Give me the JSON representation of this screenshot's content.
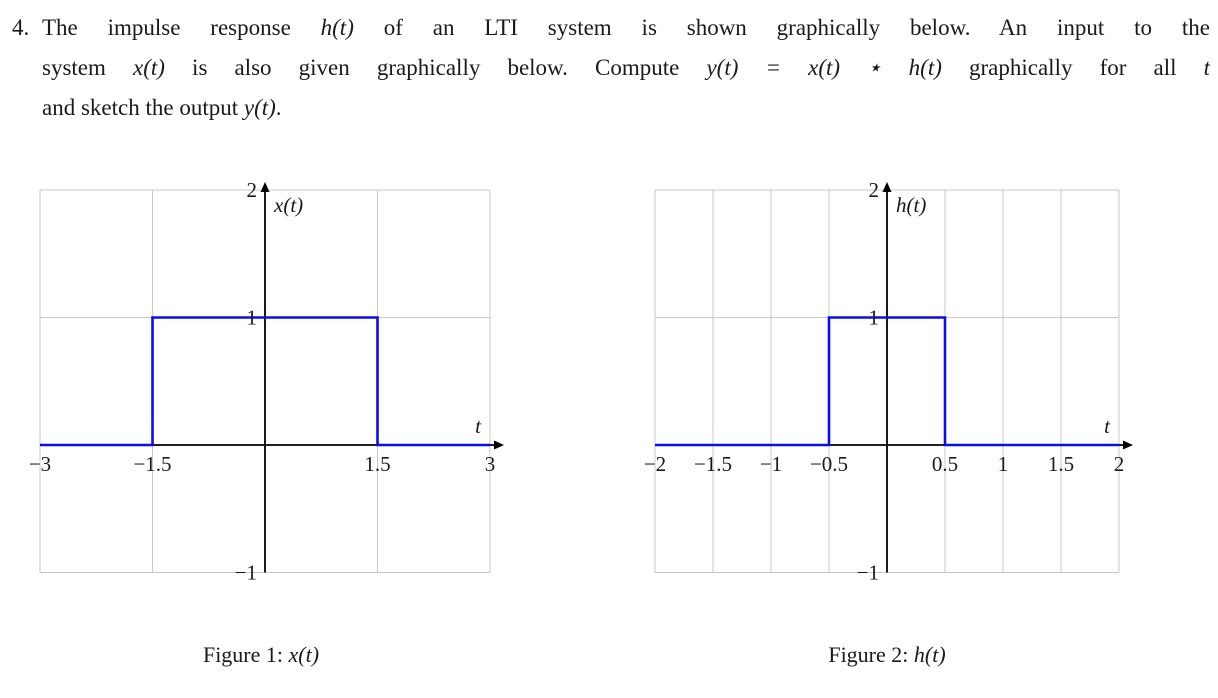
{
  "colors": {
    "signal": "#0b0bf0",
    "grid": "#c9c9c9",
    "axis": "#000000",
    "text": "#1a1a1a",
    "background": "#ffffff"
  },
  "problem": {
    "number": "4.",
    "lines": [
      {
        "justify": true,
        "segments": [
          {
            "text": "The impulse response ",
            "math": false
          },
          {
            "text": "h(t)",
            "math": true
          },
          {
            "text": " of an LTI system is shown graphically below.  An input to the",
            "math": false
          }
        ]
      },
      {
        "justify": true,
        "segments": [
          {
            "text": "system ",
            "math": false
          },
          {
            "text": "x(t)",
            "math": true
          },
          {
            "text": " is also given graphically below.  Compute ",
            "math": false
          },
          {
            "text": "y(t) = x(t) ⋆ h(t)",
            "math": true
          },
          {
            "text": " graphically for all ",
            "math": false
          },
          {
            "text": "t",
            "math": true
          }
        ]
      },
      {
        "justify": false,
        "segments": [
          {
            "text": "and sketch the output ",
            "math": false
          },
          {
            "text": "y(t)",
            "math": true
          },
          {
            "text": ".",
            "math": false
          }
        ]
      }
    ]
  },
  "chart_data": [
    {
      "type": "line",
      "title": "Figure 1: x(t)",
      "caption_prefix": "Figure 1: ",
      "caption_math": "x(t)",
      "xlabel": "t",
      "ylabel": "x(t)",
      "xlim": [
        -3,
        3
      ],
      "ylim": [
        -1,
        2
      ],
      "grid": true,
      "x_grid": [
        -3,
        -1.5,
        0,
        1.5,
        3
      ],
      "y_grid": [
        -1,
        0,
        1,
        2
      ],
      "x_ticks": [
        {
          "v": -3,
          "label": "−3"
        },
        {
          "v": -1.5,
          "label": "−1.5"
        },
        {
          "v": 1.5,
          "label": "1.5"
        },
        {
          "v": 3,
          "label": "3"
        }
      ],
      "y_ticks": [
        {
          "v": 2,
          "label": "2"
        },
        {
          "v": 1,
          "label": "1"
        },
        {
          "v": -1,
          "label": "−1"
        }
      ],
      "points": [
        [
          -3,
          0
        ],
        [
          -1.5,
          0
        ],
        [
          -1.5,
          1
        ],
        [
          1.5,
          1
        ],
        [
          1.5,
          0
        ],
        [
          3,
          0
        ]
      ],
      "description": "Rectangular pulse: x(t) = 1 for −1.5 < t < 1.5, else 0"
    },
    {
      "type": "line",
      "title": "Figure 2: h(t)",
      "caption_prefix": "Figure 2: ",
      "caption_math": "h(t)",
      "xlabel": "t",
      "ylabel": "h(t)",
      "xlim": [
        -2,
        2
      ],
      "ylim": [
        -1,
        2
      ],
      "grid": true,
      "x_grid": [
        -2,
        -1.5,
        -1,
        -0.5,
        0,
        0.5,
        1,
        1.5,
        2
      ],
      "y_grid": [
        -1,
        0,
        1,
        2
      ],
      "x_ticks": [
        {
          "v": -2,
          "label": "−2"
        },
        {
          "v": -1.5,
          "label": "−1.5"
        },
        {
          "v": -1,
          "label": "−1"
        },
        {
          "v": -0.5,
          "label": "−0.5"
        },
        {
          "v": 0.5,
          "label": "0.5"
        },
        {
          "v": 1,
          "label": "1"
        },
        {
          "v": 1.5,
          "label": "1.5"
        },
        {
          "v": 2,
          "label": "2"
        }
      ],
      "y_ticks": [
        {
          "v": 2,
          "label": "2"
        },
        {
          "v": 1,
          "label": "1"
        },
        {
          "v": -1,
          "label": "−1"
        }
      ],
      "points": [
        [
          -2,
          0
        ],
        [
          -0.5,
          0
        ],
        [
          -0.5,
          1
        ],
        [
          0.5,
          1
        ],
        [
          0.5,
          0
        ],
        [
          2,
          0
        ]
      ],
      "description": "Rectangular pulse: h(t) = 1 for −0.5 < t < 0.5, else 0"
    }
  ]
}
